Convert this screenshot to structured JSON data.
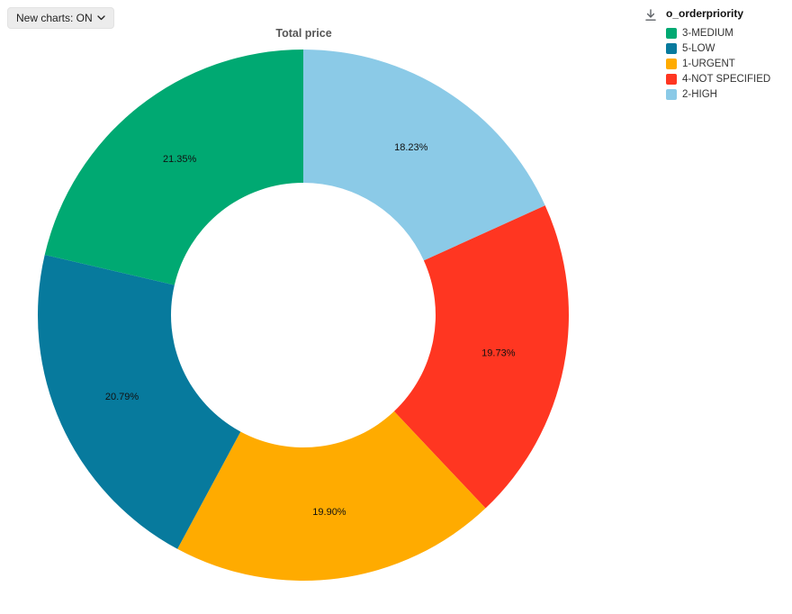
{
  "toolbar": {
    "new_charts_label": "New charts: ON"
  },
  "icons": {
    "download": "download-icon",
    "chevron": "chevron-down-icon"
  },
  "chart_data": {
    "type": "pie",
    "donut": true,
    "title": "Total price",
    "legend_title": "o_orderpriority",
    "legend_position": "top-right",
    "start_angle_deg": 0,
    "direction": "clockwise",
    "slices": [
      {
        "label": "2-HIGH",
        "value": 18.23,
        "display": "18.23%",
        "color": "#8BCAE7"
      },
      {
        "label": "4-NOT SPECIFIED",
        "value": 19.73,
        "display": "19.73%",
        "color": "#FF3621"
      },
      {
        "label": "1-URGENT",
        "value": 19.9,
        "display": "19.90%",
        "color": "#FFAB00"
      },
      {
        "label": "5-LOW",
        "value": 20.79,
        "display": "20.79%",
        "color": "#077A9D"
      },
      {
        "label": "3-MEDIUM",
        "value": 21.35,
        "display": "21.35%",
        "color": "#00A972"
      }
    ],
    "legend_order": [
      "3-MEDIUM",
      "5-LOW",
      "1-URGENT",
      "4-NOT SPECIFIED",
      "2-HIGH"
    ]
  }
}
